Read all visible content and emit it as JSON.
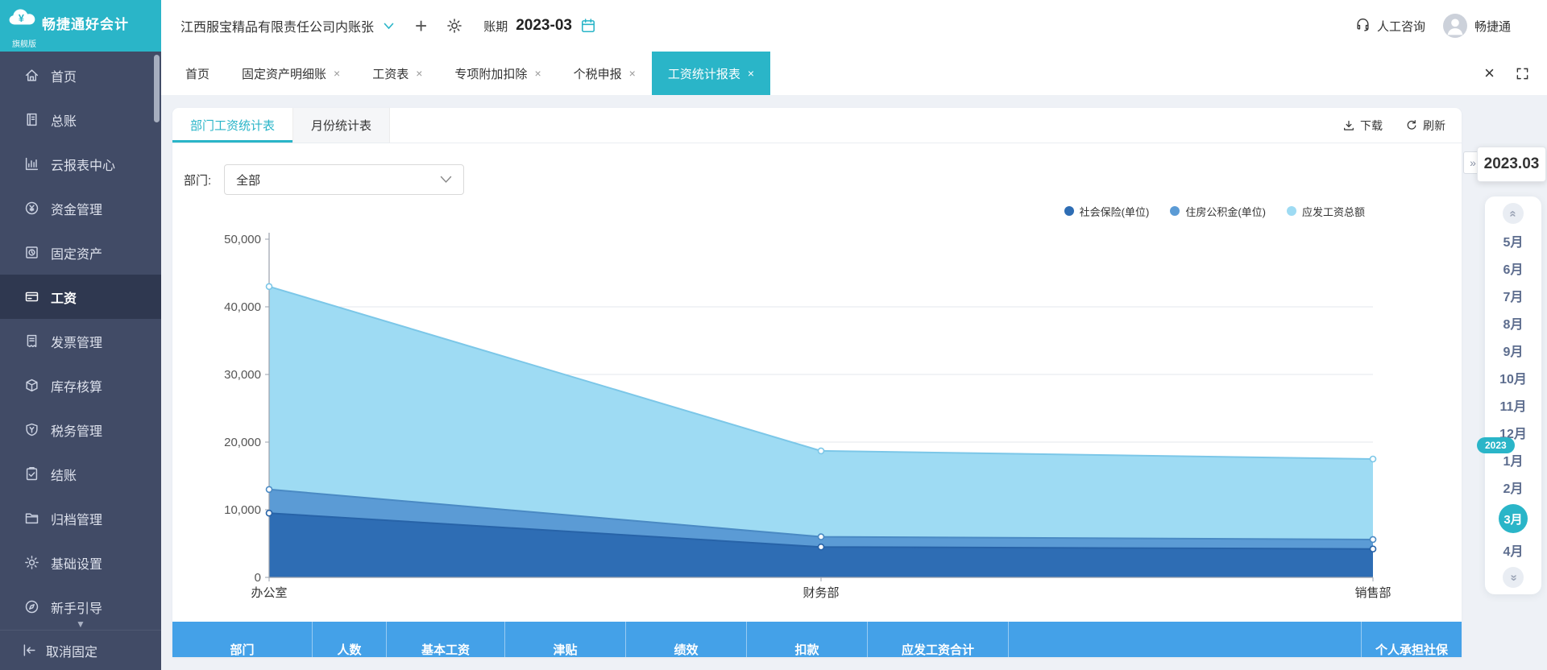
{
  "colors": {
    "accent": "#2ab5c8",
    "sidebar_bg": "#414b66",
    "sidebar_active_bg": "#2f3850",
    "table_header_bg": "#44a1e8",
    "content_bg": "#eef1f6"
  },
  "topbar": {
    "brand": "畅捷通好会计",
    "edition": "旗舰版",
    "company": "江西服宝精品有限责任公司内账张",
    "plus": "+",
    "period_label": "账期",
    "period_value": "2023-03",
    "support": "人工咨询",
    "username": "畅捷通"
  },
  "sidebar": {
    "items": [
      {
        "icon": "home",
        "label": "首页",
        "active": false
      },
      {
        "icon": "ledger",
        "label": "总账",
        "active": false
      },
      {
        "icon": "report",
        "label": "云报表中心",
        "active": false
      },
      {
        "icon": "funds",
        "label": "资金管理",
        "active": false
      },
      {
        "icon": "assets",
        "label": "固定资产",
        "active": false
      },
      {
        "icon": "salary",
        "label": "工资",
        "active": true
      },
      {
        "icon": "invoice",
        "label": "发票管理",
        "active": false
      },
      {
        "icon": "inventory",
        "label": "库存核算",
        "active": false
      },
      {
        "icon": "tax",
        "label": "税务管理",
        "active": false
      },
      {
        "icon": "closing",
        "label": "结账",
        "active": false
      },
      {
        "icon": "archive",
        "label": "归档管理",
        "active": false
      },
      {
        "icon": "settings",
        "label": "基础设置",
        "active": false
      },
      {
        "icon": "guide",
        "label": "新手引导",
        "active": false
      }
    ],
    "unpin": "取消固定"
  },
  "tabbar": {
    "tabs": [
      {
        "label": "首页",
        "closable": false,
        "active": false
      },
      {
        "label": "固定资产明细账",
        "closable": true,
        "active": false
      },
      {
        "label": "工资表",
        "closable": true,
        "active": false
      },
      {
        "label": "专项附加扣除",
        "closable": true,
        "active": false
      },
      {
        "label": "个税申报",
        "closable": true,
        "active": false
      },
      {
        "label": "工资统计报表",
        "closable": true,
        "active": true
      }
    ]
  },
  "report": {
    "subtabs": [
      {
        "label": "部门工资统计表",
        "active": true
      },
      {
        "label": "月份统计表",
        "active": false
      }
    ],
    "download_label": "下载",
    "refresh_label": "刷新",
    "filter_label": "部门:",
    "filter_value": "全部"
  },
  "chart_data": {
    "type": "area",
    "categories": [
      "办公室",
      "财务部",
      "销售部"
    ],
    "series": [
      {
        "name": "社会保险(单位)",
        "fill": "#2e6db4",
        "line": "#2763a8",
        "values": [
          9500,
          4500,
          4200
        ]
      },
      {
        "name": "住房公积金(单位)",
        "fill": "#5b9bd5",
        "line": "#4a8ac4",
        "values": [
          13000,
          6000,
          5600
        ]
      },
      {
        "name": "应发工资总额",
        "fill": "#9edbf3",
        "line": "#7cc7e8",
        "values": [
          43000,
          18700,
          17500
        ]
      }
    ],
    "ylim": [
      0,
      50000
    ],
    "yticks": [
      0,
      10000,
      20000,
      30000,
      40000,
      50000
    ],
    "legend_position": "top-right",
    "grid": true
  },
  "table": {
    "headers": [
      "部门",
      "人数",
      "基本工资",
      "津贴",
      "绩效",
      "扣款",
      "应发工资合计",
      "",
      "个人承担社保"
    ]
  },
  "period_panel": {
    "collapse": "»",
    "current": "2023.03",
    "months_prev_year": [
      "5月",
      "6月",
      "7月",
      "8月",
      "9月",
      "10月",
      "11月",
      "12月"
    ],
    "year_badge": "2023",
    "months_current_year": [
      "1月",
      "2月",
      "3月",
      "4月"
    ],
    "selected_month": "3月"
  }
}
